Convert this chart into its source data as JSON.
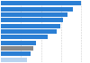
{
  "values": [
    100,
    90,
    83,
    78,
    74,
    70,
    58,
    44,
    40,
    37,
    33
  ],
  "bar_colors": [
    "#2b7fd4",
    "#2b7fd4",
    "#2b7fd4",
    "#2b7fd4",
    "#2b7fd4",
    "#2b7fd4",
    "#2b7fd4",
    "#2b7fd4",
    "#888888",
    "#2b7fd4",
    "#b8d4f0"
  ],
  "background_color": "#ffffff",
  "xlim": [
    0,
    110
  ],
  "grid_lines": [
    25,
    50,
    75,
    100
  ],
  "grid_color": "#cccccc",
  "bar_height": 0.78
}
